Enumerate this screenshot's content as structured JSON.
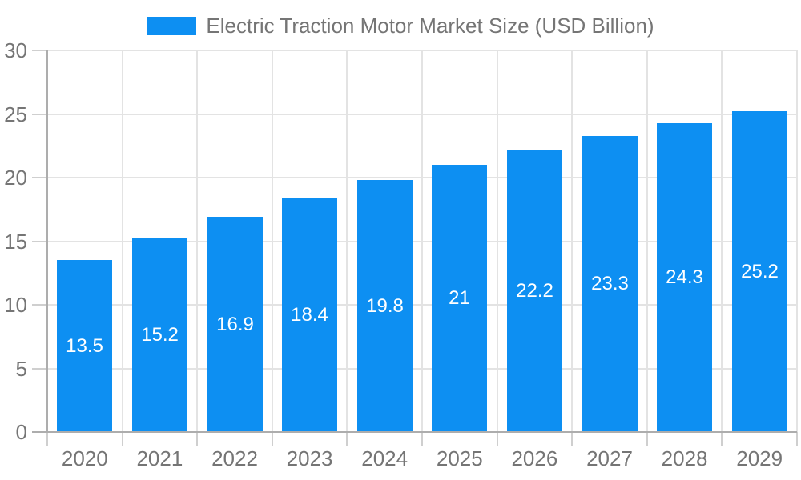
{
  "chart_data": {
    "type": "bar",
    "title": "Electric Traction Motor Market Size (USD Billion)",
    "categories": [
      "2020",
      "2021",
      "2022",
      "2023",
      "2024",
      "2025",
      "2026",
      "2027",
      "2028",
      "2029"
    ],
    "values": [
      13.5,
      15.2,
      16.9,
      18.4,
      19.8,
      21,
      22.2,
      23.3,
      24.3,
      25.2
    ],
    "value_labels": [
      "13.5",
      "15.2",
      "16.9",
      "18.4",
      "19.8",
      "21",
      "22.2",
      "23.3",
      "24.3",
      "25.2"
    ],
    "xlabel": "",
    "ylabel": "",
    "ylim": [
      0,
      30
    ],
    "yticks": [
      0,
      5,
      10,
      15,
      20,
      25,
      30
    ],
    "grid": "both",
    "legend_position": "top"
  },
  "legend": {
    "title": "Electric Traction Motor Market Size (USD Billion)"
  },
  "colors": {
    "bar": "#0D8FF2",
    "bar_label": "#FFFFFF",
    "axis_text": "#757575",
    "axis_line": "#ADADAD",
    "gridline": "#E3E3E3",
    "tick": "#CFCFCF",
    "background": "#FFFFFF"
  }
}
